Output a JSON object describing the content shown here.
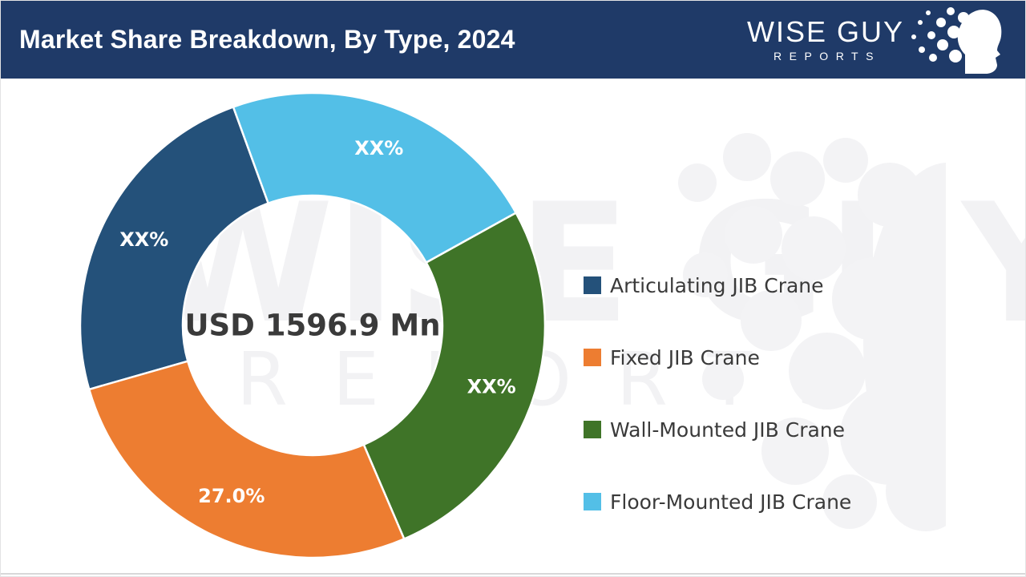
{
  "header": {
    "title": "Market Share Breakdown, By Type, 2024",
    "logo": {
      "line1": "WISE GUY",
      "line2": "REPORTS"
    }
  },
  "watermark": {
    "line1": "WISE GUY",
    "line2": "REPORTS"
  },
  "chart_data": {
    "type": "pie",
    "variant": "donut",
    "title": "Market Share Breakdown, By Type, 2024",
    "center_label": "USD 1596.9 Mn",
    "legend_position": "right",
    "start_angle_deg": 196,
    "draw_order_clockwise": [
      0,
      3,
      2,
      1
    ],
    "segments": [
      {
        "label": "Articulating JIB Crane",
        "display_label": "XX%",
        "percent": 23.9,
        "color": "#24517a"
      },
      {
        "label": "Fixed JIB Crane",
        "display_label": "27.0%",
        "percent": 27.0,
        "color": "#ed7d31"
      },
      {
        "label": "Wall-Mounted JIB Crane",
        "display_label": "XX%",
        "percent": 26.6,
        "color": "#3f7428"
      },
      {
        "label": "Floor-Mounted JIB Crane",
        "display_label": "XX%",
        "percent": 22.5,
        "color": "#53bfe7"
      }
    ]
  }
}
